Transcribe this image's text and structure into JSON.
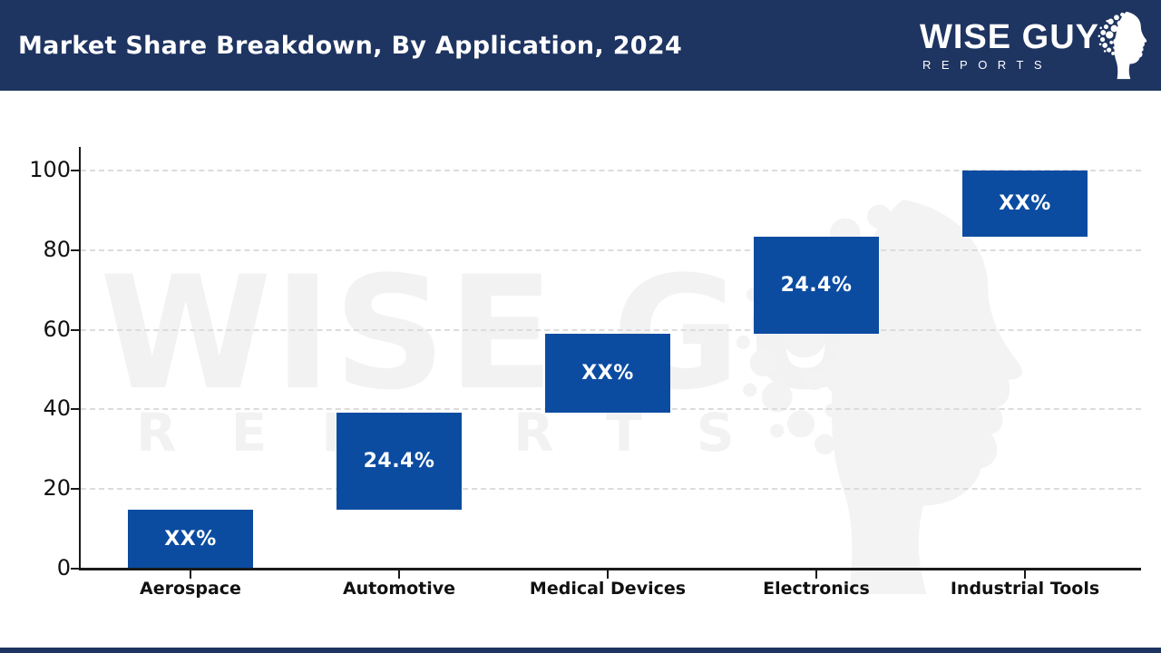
{
  "header": {
    "title": "Market Share Breakdown, By Application, 2024",
    "bg_color": "#1e3461",
    "logo": {
      "wordmark": "WISE GUY",
      "subtext": "REPORTS"
    }
  },
  "watermark": {
    "line1": "WISE GUY",
    "line2": "REPORTS"
  },
  "chart_data": {
    "type": "bar",
    "subtype": "waterfall",
    "title": "Market Share Breakdown, By Application, 2024",
    "categories": [
      "Aerospace",
      "Automotive",
      "Medical Devices",
      "Electronics",
      "Industrial Tools"
    ],
    "segments": [
      {
        "category": "Aerospace",
        "start": 0.0,
        "end": 14.8,
        "value": 14.8,
        "label": "XX%"
      },
      {
        "category": "Automotive",
        "start": 14.8,
        "end": 39.2,
        "value": 24.4,
        "label": "24.4%"
      },
      {
        "category": "Medical Devices",
        "start": 39.2,
        "end": 59.0,
        "value": 19.8,
        "label": "XX%"
      },
      {
        "category": "Electronics",
        "start": 59.0,
        "end": 83.4,
        "value": 24.4,
        "label": "24.4%"
      },
      {
        "category": "Industrial Tools",
        "start": 83.4,
        "end": 100.0,
        "value": 16.6,
        "label": "XX%"
      }
    ],
    "xlabel": "",
    "ylabel": "",
    "yticks": [
      0,
      20,
      40,
      60,
      80,
      100
    ],
    "ylim": [
      0,
      106
    ],
    "grid": "horizontal-dashed",
    "legend": "none",
    "bar_color": "#0b4ca1",
    "bar_label_color": "#ffffff"
  }
}
